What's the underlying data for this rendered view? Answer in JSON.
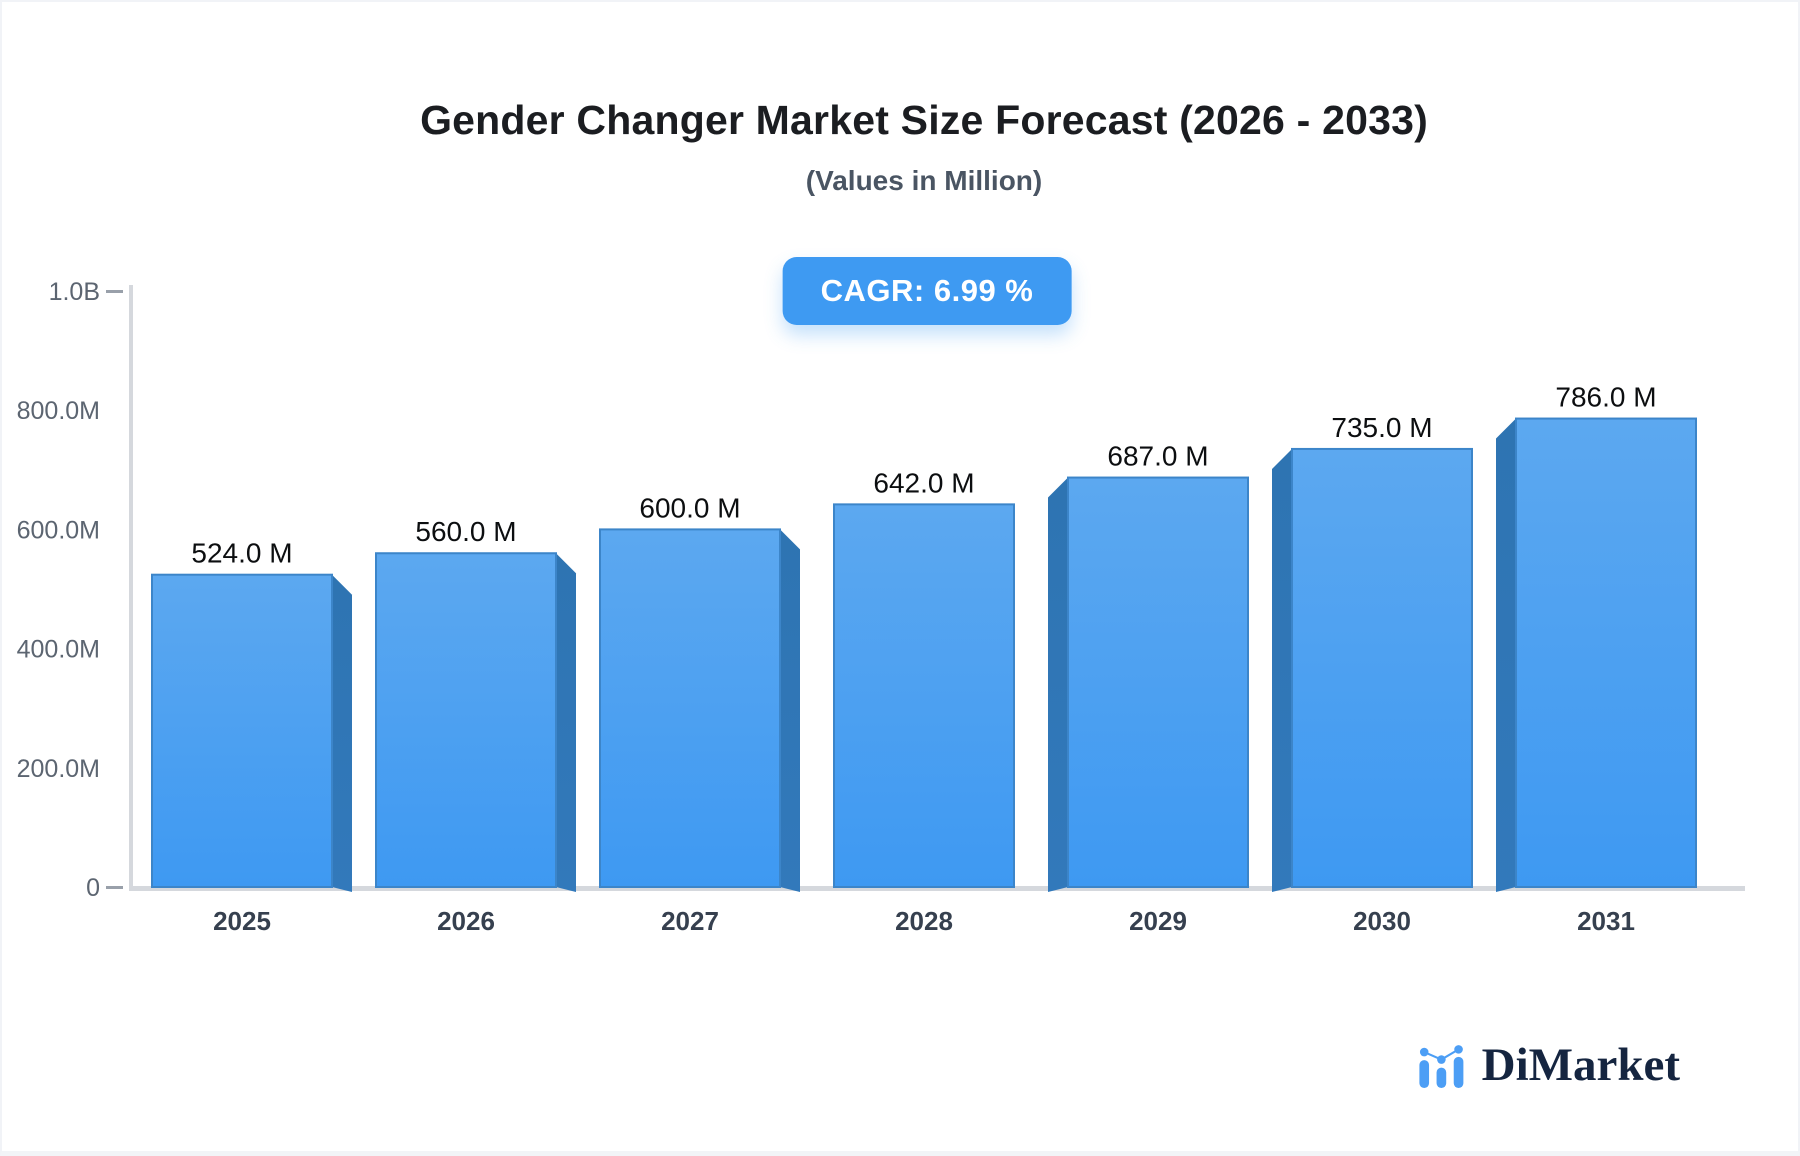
{
  "page": {
    "background": "#ffffff",
    "border_color": "#f1f3f7"
  },
  "header": {
    "title": "Gender Changer Market Size Forecast (2026 - 2033)",
    "subtitle": "(Values in Million)",
    "cagr_badge": "CAGR: 6.99 %",
    "badge_color": "#3e9af2"
  },
  "chart_data": {
    "type": "bar",
    "title": "Gender Changer Market Size Forecast (2026 - 2033)",
    "subtitle": "(Values in Million)",
    "annotation": "CAGR: 6.99 %",
    "categories": [
      "2025",
      "2026",
      "2027",
      "2028",
      "2029",
      "2030",
      "2031"
    ],
    "values": [
      524,
      560,
      600,
      642,
      687,
      735,
      786
    ],
    "value_labels": [
      "524.0 M",
      "560.0 M",
      "600.0 M",
      "642.0 M",
      "687.0 M",
      "735.0 M",
      "786.0 M"
    ],
    "unit": "Million USD",
    "y_ticks": [
      "0",
      "200.0M",
      "400.0M",
      "600.0M",
      "800.0M",
      "1.0B"
    ],
    "y_tick_values": [
      0,
      200,
      400,
      600,
      800,
      1000
    ],
    "ylim": [
      0,
      1000
    ],
    "grid": false,
    "legend": false,
    "bar_face_top_color": "#5ca8f0",
    "bar_face_bottom_color": "#3e99f2",
    "bar_face_stroke_color": "#3c85c9",
    "bar_side_color": "#2e74b2",
    "axis_line_color": "#d5d8dd",
    "tick_dash_color": "#99a0aa",
    "y_label_color": "#5c6571",
    "x_label_color": "#36404f",
    "value_label_color": "#0c0e10"
  },
  "branding": {
    "logo_text": "DiMarket",
    "logo_icon": "bar-chart-logo-icon",
    "logo_text_color": "#152540",
    "logo_accent_color": "#4c9ef5"
  }
}
